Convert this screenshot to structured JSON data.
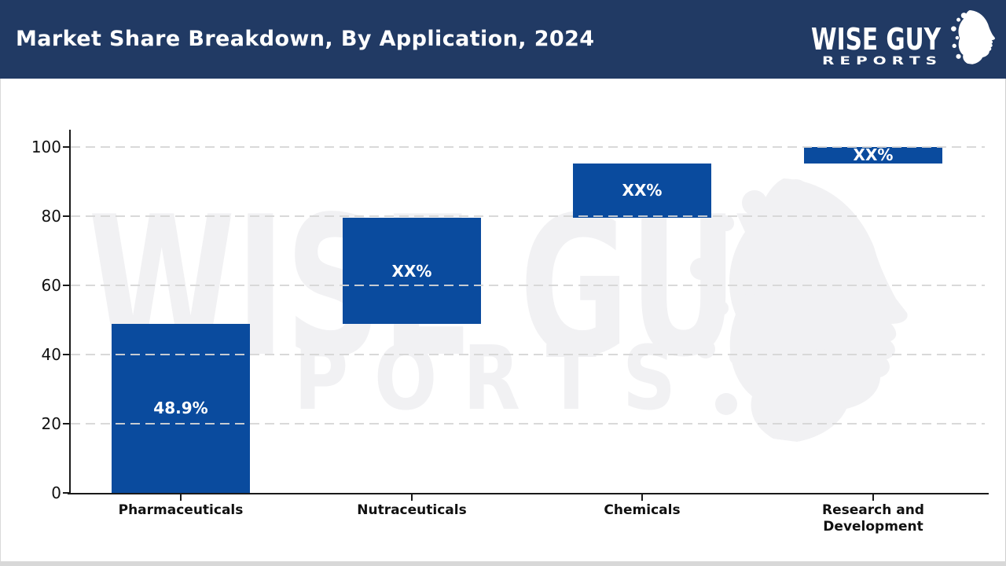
{
  "header": {
    "title": "Market Share Breakdown, By Application, 2024",
    "logo": {
      "line1": "WISE GUY",
      "line2": "R E P O R T S"
    }
  },
  "watermark": {
    "line1": "WISE GUY",
    "line2": "P O R T S"
  },
  "chart_data": {
    "type": "bar",
    "subtype": "waterfall",
    "title": "Market Share Breakdown, By Application, 2024",
    "categories": [
      "Pharmaceuticals",
      "Nutraceuticals",
      "Chemicals",
      "Research and Development"
    ],
    "segments": [
      {
        "category": "Pharmaceuticals",
        "start": 0,
        "end": 48.9,
        "label": "48.9%"
      },
      {
        "category": "Nutraceuticals",
        "start": 48.9,
        "end": 79.5,
        "label": "XX%"
      },
      {
        "category": "Chemicals",
        "start": 79.5,
        "end": 95.3,
        "label": "XX%"
      },
      {
        "category": "Research and Development",
        "start": 95.3,
        "end": 100,
        "label": "XX%"
      }
    ],
    "ylim": [
      0,
      100
    ],
    "yticks": [
      0,
      20,
      40,
      60,
      80,
      100
    ],
    "grid": "dashed-horizontal",
    "legend": "none",
    "bar_color": "#0a4b9e",
    "bar_label_color": "#ffffff"
  },
  "colors": {
    "header_bg": "#213a64",
    "bar": "#0a4b9e",
    "grid": "#dcdcdc",
    "watermark": "#f1f1f3",
    "axis": "#1a1a1a"
  }
}
